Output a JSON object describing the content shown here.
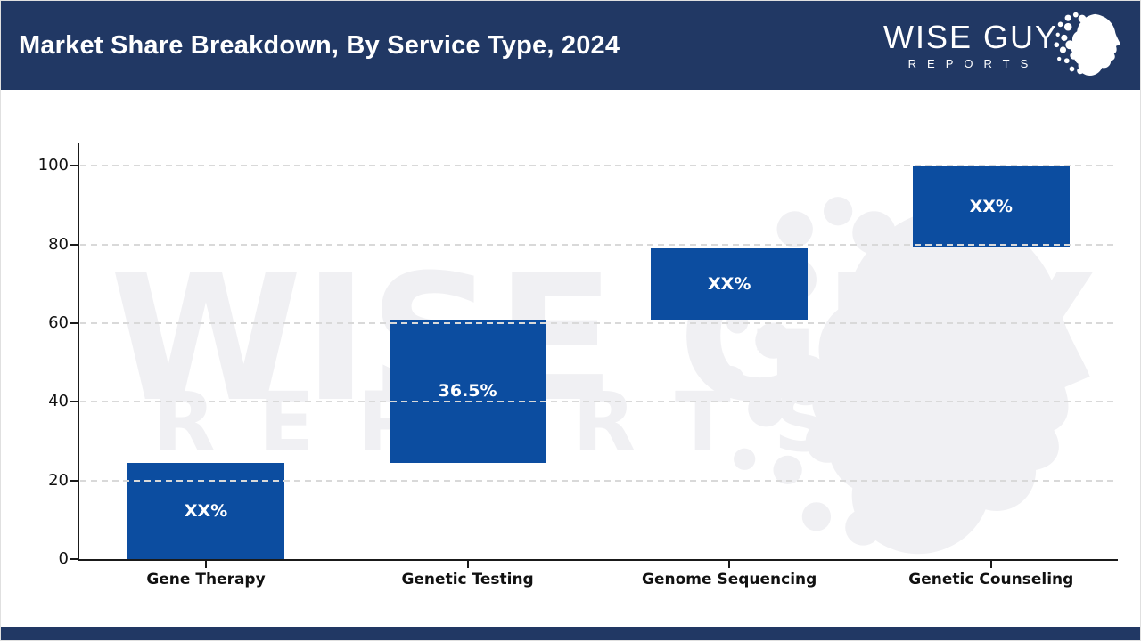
{
  "header": {
    "title": "Market Share Breakdown, By Service Type, 2024",
    "background_color": "#213864",
    "logo": {
      "line1": "WISE GUY",
      "line2": "REPORTS",
      "head_icon": "dotted-head-profile"
    }
  },
  "watermark": {
    "line1": "WISE GUY",
    "line2": "REPORTS",
    "color": "#f0f0f3"
  },
  "footer": {
    "background_color": "#213864"
  },
  "chart_data": {
    "type": "bar",
    "subtype": "waterfall",
    "title": "Market Share Breakdown, By Service Type, 2024",
    "categories": [
      "Gene Therapy",
      "Genetic Testing",
      "Genome Sequencing",
      "Genetic Counseling"
    ],
    "segments": [
      {
        "category": "Gene Therapy",
        "start": 0,
        "end": 24.5,
        "value_label": "XX%"
      },
      {
        "category": "Genetic Testing",
        "start": 24.5,
        "end": 61,
        "value_label": "36.5%"
      },
      {
        "category": "Genome Sequencing",
        "start": 61,
        "end": 79,
        "value_label": "XX%"
      },
      {
        "category": "Genetic Counseling",
        "start": 79.5,
        "end": 100,
        "value_label": "XX%"
      }
    ],
    "xlabel": "",
    "ylabel": "",
    "ylim": [
      0,
      100
    ],
    "yticks": [
      0,
      20,
      40,
      60,
      80,
      100
    ],
    "ytick_labels": [
      "0",
      "20",
      "40",
      "60",
      "80",
      "100"
    ],
    "grid": "horizontal-dashed",
    "grid_color": "#d9d9d9",
    "legend": "none",
    "bar_color": "#0c4da0",
    "bar_label_color": "#ffffff",
    "axis_color": "#1a1a1a"
  }
}
